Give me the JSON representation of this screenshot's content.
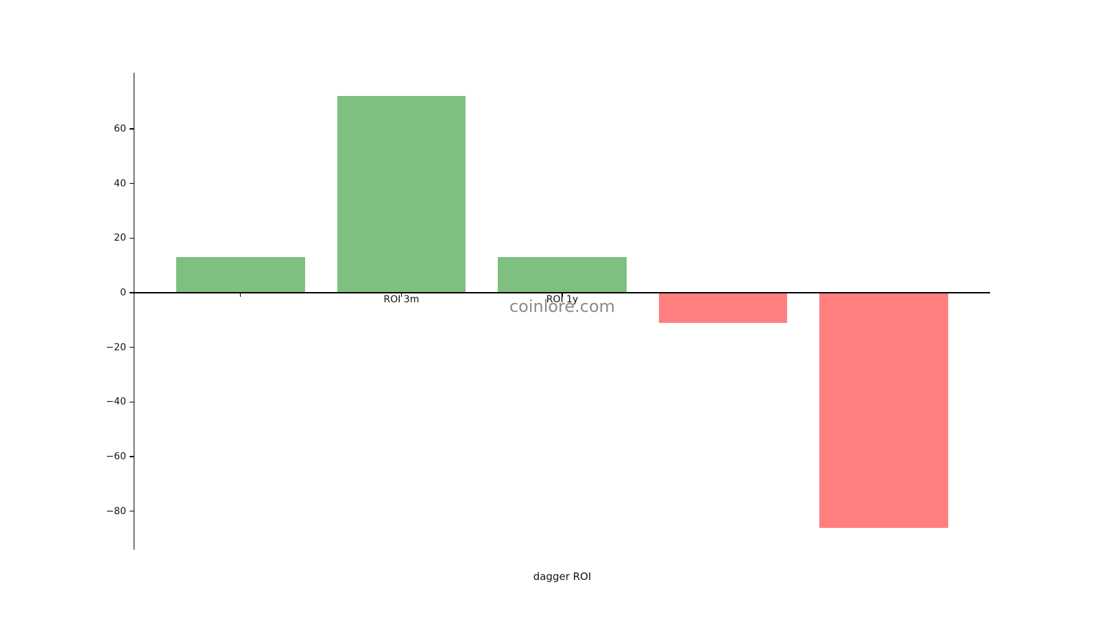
{
  "watermark": "coinlore.com",
  "chart_data": {
    "type": "bar",
    "title": "",
    "xlabel": "dagger ROI",
    "ylabel": "",
    "categories": [
      "",
      "ROI 3m",
      "ROI 1y",
      "",
      ""
    ],
    "values": [
      13,
      72,
      13,
      -11,
      -86
    ],
    "bar_colors": [
      "#7fbf7f",
      "#7fbf7f",
      "#7fbf7f",
      "#ff7f7f",
      "#ff7f7f"
    ],
    "positive_color": "#7fbf7f",
    "negative_color": "#ff7f7f",
    "bar_width_units": 0.8,
    "yticks": [
      60,
      40,
      20,
      0,
      -20,
      -40,
      -60,
      -80
    ],
    "ytick_labels": [
      "60",
      "40",
      "20",
      "0",
      "−20",
      "−40",
      "−60",
      "−80"
    ],
    "ylim": [
      -94.1,
      80.6
    ],
    "xlim": [
      -0.66,
      4.66
    ],
    "grid": false,
    "legend": false,
    "axis_color": "#000000",
    "text_color": "#111111",
    "watermark_color": "#8a8a8a"
  }
}
